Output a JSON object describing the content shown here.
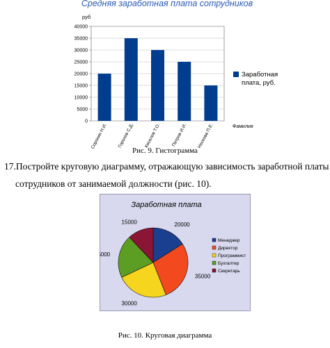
{
  "chart_data": [
    {
      "type": "bar",
      "title": "Средняя заработная плата сотрудников",
      "ylabel": "руб",
      "xlabel": "Фамилия",
      "categories": [
        "Сорокин Н.И.",
        "Горохов С.Д.",
        "Киселев Т.О.",
        "Петров И.И.",
        "Носкова П.Е."
      ],
      "series": [
        {
          "name": "Заработная плата, руб.",
          "values": [
            20000,
            35000,
            30000,
            25000,
            15000
          ],
          "color": "#003d8f"
        }
      ],
      "ylim": [
        0,
        40000
      ],
      "yticks": [
        "40000",
        "35000",
        "30000",
        "25000",
        "20000",
        "15000",
        "10000",
        "5000",
        "0"
      ],
      "grid": true,
      "legend": "right"
    },
    {
      "type": "pie",
      "title": "Заработная плата",
      "labels": [
        "Менеджер",
        "Директор",
        "Программист",
        "Бухгалтер",
        "Секретарь"
      ],
      "values": [
        20000,
        35000,
        30000,
        25000,
        15000
      ],
      "colors": [
        "#1a3f8f",
        "#f24a1e",
        "#f5d51e",
        "#5c9e24",
        "#8a1535"
      ],
      "legend": "right",
      "background": "#d8d8ee"
    }
  ],
  "text": {
    "fig9_caption": "Рис. 9. Гистограмма",
    "task_line1": "17.Постройте круговую диаграмму, отражающую зависимость заработной платы",
    "task_line2": "сотрудников от занимаемой должности (рис. 10).",
    "fig10_caption": "Рис. 10. Круговая диаграмма"
  }
}
